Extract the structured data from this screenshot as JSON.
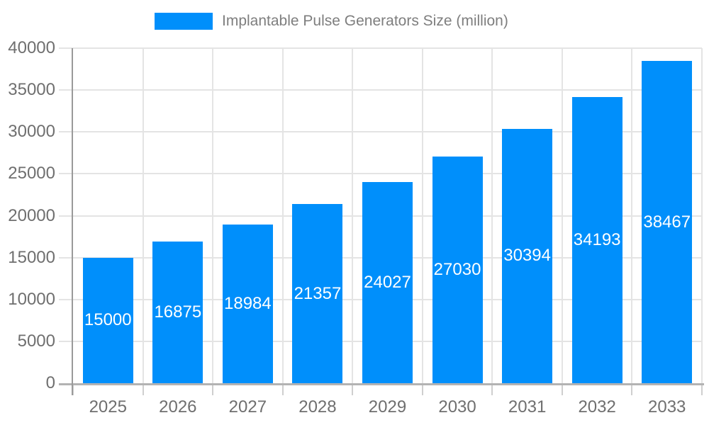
{
  "legend": {
    "label": "Implantable Pulse Generators Size (million)"
  },
  "chart_data": {
    "type": "bar",
    "title": "",
    "xlabel": "",
    "ylabel": "",
    "categories": [
      "2025",
      "2026",
      "2027",
      "2028",
      "2029",
      "2030",
      "2031",
      "2032",
      "2033"
    ],
    "series": [
      {
        "name": "Implantable Pulse Generators Size (million)",
        "values": [
          15000,
          16875,
          18984,
          21357,
          24027,
          27030,
          30394,
          34193,
          38467
        ]
      }
    ],
    "data_labels": [
      "15000",
      "16875",
      "18984",
      "21357",
      "24027",
      "27030",
      "30394",
      "34193",
      "38467"
    ],
    "ylim": [
      0,
      40000
    ],
    "yticks": [
      0,
      5000,
      10000,
      15000,
      20000,
      25000,
      30000,
      35000,
      40000
    ],
    "grid": "horizontal and vertical light gray gridlines",
    "legend_position": "top"
  },
  "colors": {
    "bar": "#008FFB",
    "bar_label": "#FFFFFF",
    "axis_label": "#6F6F6F",
    "legend_text": "#7E7E7E",
    "gridline": "#E4E4E4",
    "y_axis_line": "#9A9A9A",
    "x_axis_line": "#B3B3B3",
    "tick": "#CFCFCF",
    "background": "#FFFFFF"
  }
}
